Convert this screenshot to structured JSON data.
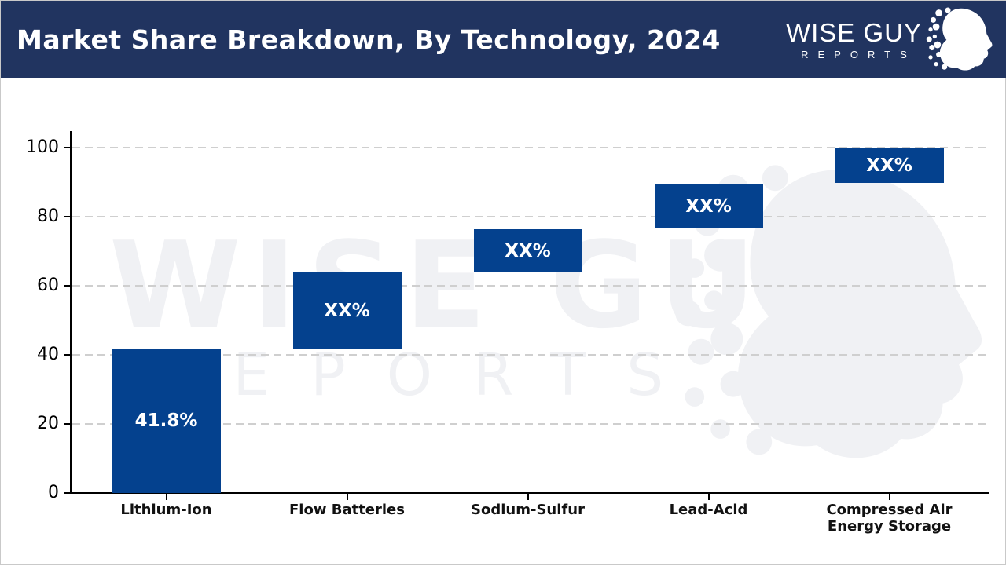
{
  "header": {
    "title": "Market Share Breakdown, By Technology, 2024",
    "logo": {
      "primary": "WISE GUY",
      "secondary": "REPORTS"
    }
  },
  "watermark": {
    "line1": "WISE GUY",
    "line2": "REPORTS"
  },
  "colors": {
    "header_bg": "#213460",
    "bar": "#04418e",
    "bar_label": "#ffffff",
    "grid": "#cfcfcf",
    "axis": "#000000",
    "watermark": "#f0f1f4",
    "page_bg": "#ffffff"
  },
  "chart_data": {
    "type": "bar",
    "subtype": "waterfall-floating-bars",
    "title": "Market Share Breakdown, By Technology, 2024",
    "xlabel": "",
    "ylabel": "",
    "unit": "%",
    "categories": [
      "Lithium-Ion",
      "Flow Batteries",
      "Sodium-Sulfur",
      "Lead-Acid",
      "Compressed Air Energy Storage"
    ],
    "segments": [
      {
        "category": "Lithium-Ion",
        "start": 0,
        "end": 41.8,
        "label": "41.8%"
      },
      {
        "category": "Flow Batteries",
        "start": 41.8,
        "end": 63.8,
        "label": "XX%"
      },
      {
        "category": "Sodium-Sulfur",
        "start": 63.8,
        "end": 76.3,
        "label": "XX%"
      },
      {
        "category": "Lead-Acid",
        "start": 76.5,
        "end": 89.5,
        "label": "XX%"
      },
      {
        "category": "Compressed Air Energy Storage",
        "start": 89.7,
        "end": 100,
        "label": "XX%"
      }
    ],
    "yticks": [
      0,
      20,
      40,
      60,
      80,
      100
    ],
    "ylim": [
      0,
      105
    ],
    "grid": "horizontal dashed, at y=20/40/60/80/100",
    "legend": "none",
    "value_labels": "centered inside each bar, white bold"
  }
}
